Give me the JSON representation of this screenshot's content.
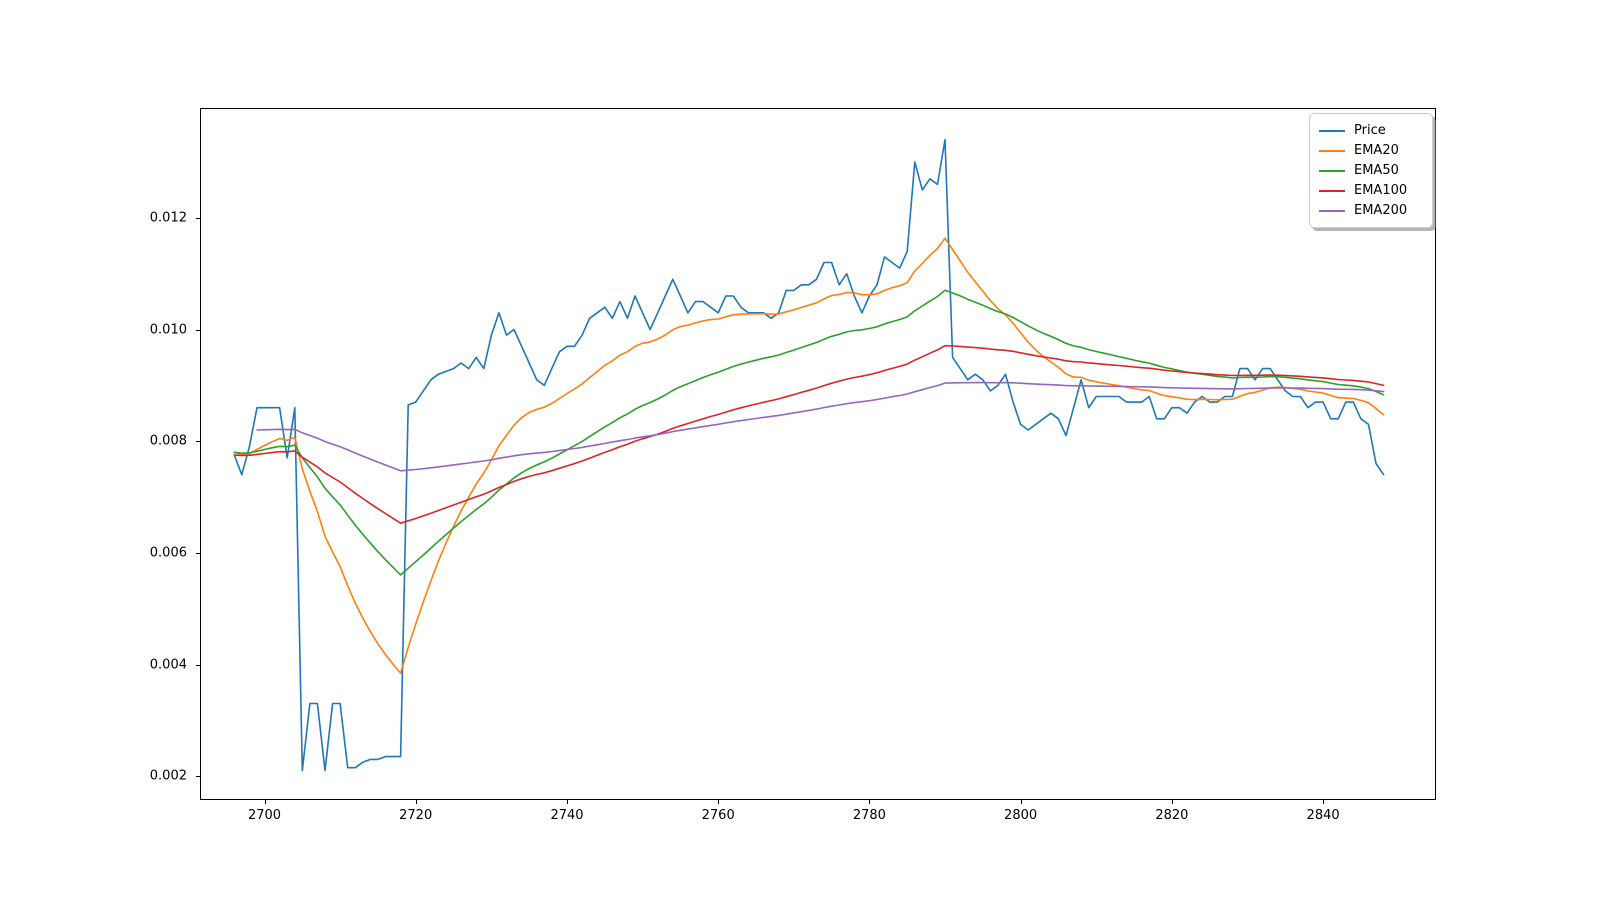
{
  "chart_data": {
    "type": "line",
    "title": "",
    "xlabel": "",
    "ylabel": "",
    "grid": false,
    "legend_position": "upper right",
    "x_range": [
      2691.6,
      2854.8
    ],
    "y_range": [
      0.00159,
      0.01395
    ],
    "x_ticks": [
      {
        "value": 2700,
        "label": "2700"
      },
      {
        "value": 2720,
        "label": "2720"
      },
      {
        "value": 2740,
        "label": "2740"
      },
      {
        "value": 2760,
        "label": "2760"
      },
      {
        "value": 2780,
        "label": "2780"
      },
      {
        "value": 2800,
        "label": "2800"
      },
      {
        "value": 2820,
        "label": "2820"
      },
      {
        "value": 2840,
        "label": "2840"
      }
    ],
    "y_ticks": [
      {
        "value": 0.002,
        "label": "0.002"
      },
      {
        "value": 0.004,
        "label": "0.004"
      },
      {
        "value": 0.006,
        "label": "0.006"
      },
      {
        "value": 0.008,
        "label": "0.008"
      },
      {
        "value": 0.01,
        "label": "0.010"
      },
      {
        "value": 0.012,
        "label": "0.012"
      }
    ],
    "x_start": 2696,
    "price_values": [
      0.00775,
      0.0074,
      0.0079,
      0.0086,
      0.0086,
      0.0086,
      0.0086,
      0.0077,
      0.0086,
      0.0021,
      0.0033,
      0.0033,
      0.0021,
      0.0033,
      0.0033,
      0.00215,
      0.00215,
      0.00225,
      0.0023,
      0.0023,
      0.00235,
      0.00235,
      0.00235,
      0.00865,
      0.0087,
      0.0089,
      0.0091,
      0.0092,
      0.00925,
      0.0093,
      0.0094,
      0.0093,
      0.0095,
      0.0093,
      0.0099,
      0.0103,
      0.0099,
      0.01,
      0.0097,
      0.0094,
      0.0091,
      0.009,
      0.0093,
      0.0096,
      0.0097,
      0.0097,
      0.0099,
      0.0102,
      0.0103,
      0.0104,
      0.0102,
      0.0105,
      0.0102,
      0.0106,
      0.0103,
      0.01,
      0.0103,
      0.0106,
      0.0109,
      0.0106,
      0.0103,
      0.0105,
      0.0105,
      0.0104,
      0.0103,
      0.0106,
      0.0106,
      0.0104,
      0.0103,
      0.0103,
      0.0103,
      0.0102,
      0.0103,
      0.0107,
      0.0107,
      0.0108,
      0.0108,
      0.0109,
      0.0112,
      0.0112,
      0.0108,
      0.011,
      0.0106,
      0.0103,
      0.0106,
      0.0108,
      0.0113,
      0.0112,
      0.0111,
      0.0114,
      0.013,
      0.0125,
      0.0127,
      0.0126,
      0.0134,
      0.0095,
      0.0093,
      0.0091,
      0.0092,
      0.0091,
      0.0089,
      0.009,
      0.0092,
      0.0087,
      0.0083,
      0.0082,
      0.0083,
      0.0084,
      0.0085,
      0.0084,
      0.0081,
      0.0086,
      0.0091,
      0.0086,
      0.0088,
      0.0088,
      0.0088,
      0.0088,
      0.0087,
      0.0087,
      0.0087,
      0.0088,
      0.0084,
      0.0084,
      0.0086,
      0.0086,
      0.0085,
      0.0087,
      0.0088,
      0.0087,
      0.0087,
      0.0088,
      0.0088,
      0.0093,
      0.0093,
      0.0091,
      0.0093,
      0.0093,
      0.0091,
      0.0089,
      0.0088,
      0.0088,
      0.0086,
      0.0087,
      0.0087,
      0.0084,
      0.0084,
      0.0087,
      0.0087,
      0.0084,
      0.0083,
      0.0076,
      0.0074
    ],
    "series": [
      {
        "name": "Price",
        "color": "#1f77b4",
        "kind": "price"
      },
      {
        "name": "EMA20",
        "color": "#ff7f0e",
        "kind": "ema",
        "period": 20,
        "seed": 0.0078,
        "start_index": 0
      },
      {
        "name": "EMA50",
        "color": "#2ca02c",
        "kind": "ema",
        "period": 50,
        "seed": 0.0078,
        "start_index": 0
      },
      {
        "name": "EMA100",
        "color": "#d62728",
        "kind": "ema",
        "period": 100,
        "seed": 0.00775,
        "start_index": 0
      },
      {
        "name": "EMA200",
        "color": "#9467bd",
        "kind": "ema",
        "period": 200,
        "seed": 0.0082,
        "start_index": 3
      }
    ]
  }
}
